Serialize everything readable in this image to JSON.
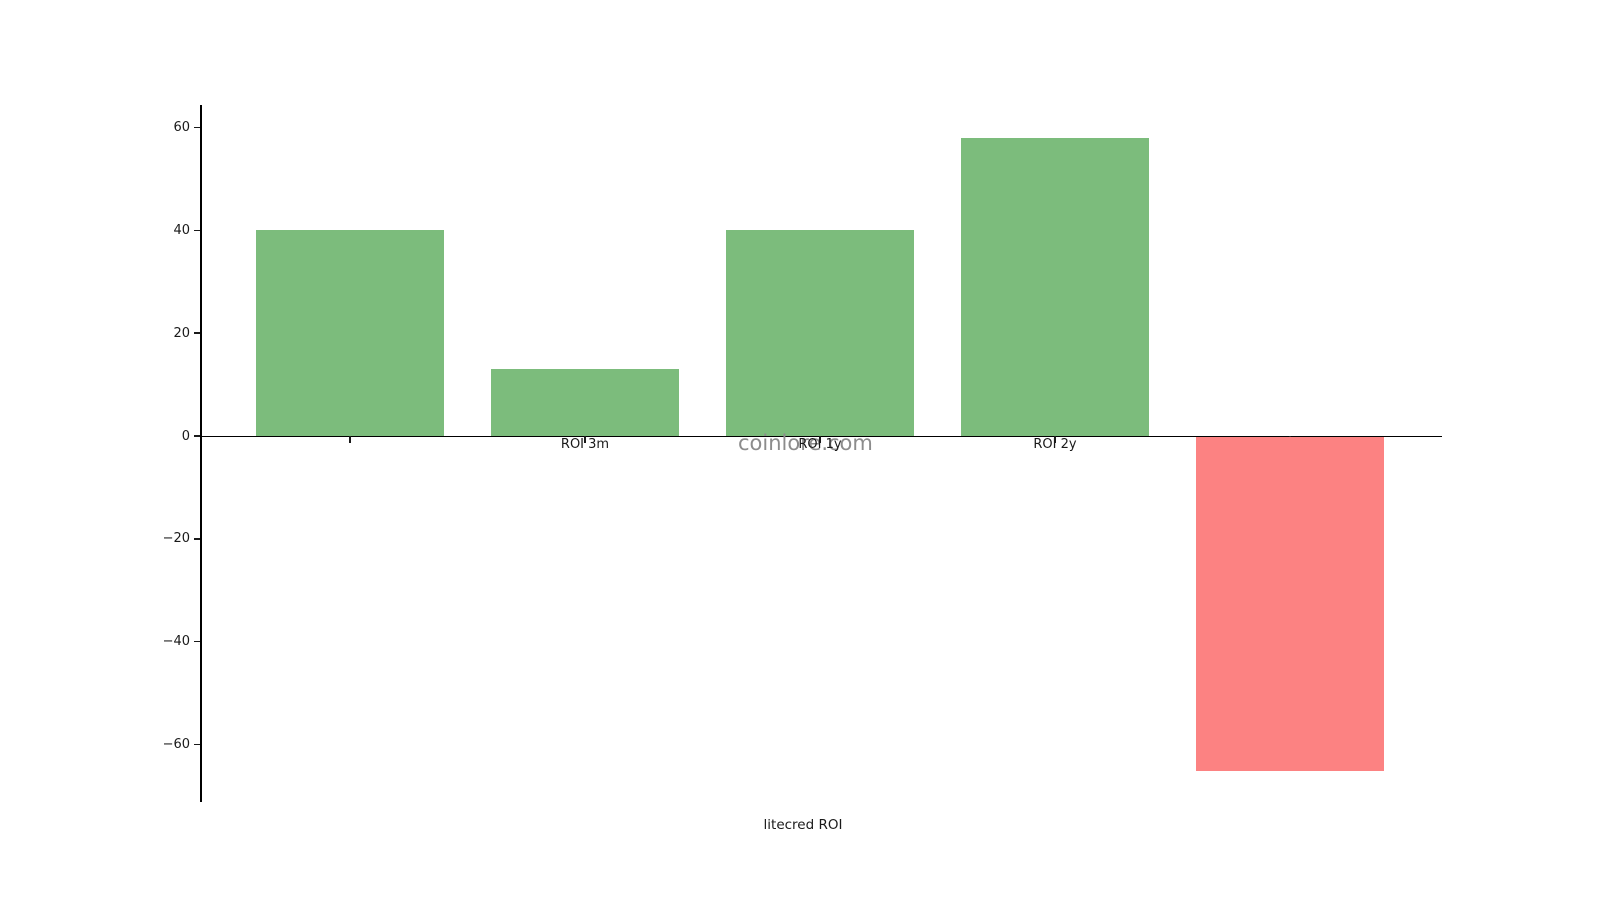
{
  "chart_data": {
    "type": "bar",
    "categories": [
      "",
      "ROI 3m",
      "ROI 1y",
      "ROI 2y",
      ""
    ],
    "values": [
      40,
      13,
      40,
      58,
      -65
    ],
    "bar_colors": [
      "#7cbc7c",
      "#7cbc7c",
      "#7cbc7c",
      "#7cbc7c",
      "#fc8282"
    ],
    "positive_color": "#7cbc7c",
    "negative_color": "#fc8282",
    "title": "litecred ROI",
    "xlabel": "",
    "ylabel": "",
    "ylim": [
      -71,
      64
    ],
    "yticks": [
      60,
      40,
      20,
      0,
      -20,
      -40,
      -60
    ],
    "ytick_labels": [
      "60",
      "40",
      "20",
      "0",
      "−20",
      "−40",
      "−60"
    ],
    "grid": false,
    "legend": null,
    "watermark": "coinlore.com",
    "axis_color": "#000000",
    "text_color": "#1a1a1a",
    "watermark_color": "#8c8c8c"
  }
}
